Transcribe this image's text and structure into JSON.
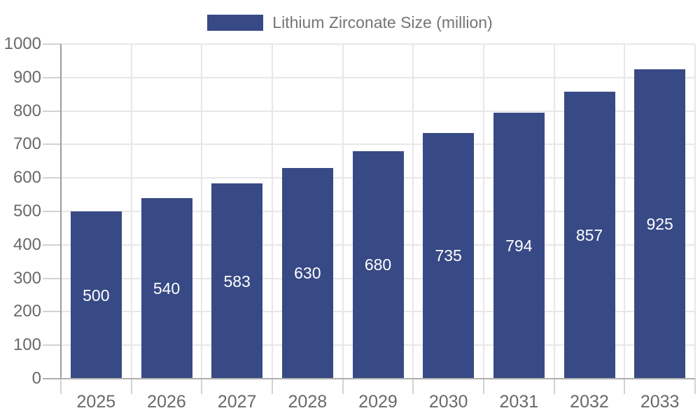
{
  "chart_data": {
    "type": "bar",
    "legend": "Lithium Zirconate Size (million)",
    "categories": [
      "2025",
      "2026",
      "2027",
      "2028",
      "2029",
      "2030",
      "2031",
      "2032",
      "2033"
    ],
    "values": [
      500,
      540,
      583,
      630,
      680,
      735,
      794,
      857,
      925
    ],
    "title": "",
    "xlabel": "",
    "ylabel": "",
    "ylim": [
      0,
      1000
    ],
    "ytick_step": 100,
    "grid": true,
    "legend_position": "top-center",
    "colors": {
      "bar": "#384a85",
      "bar_label": "#ffffff",
      "axis_tick_label": "#696969",
      "legend_text": "#757575",
      "gridline": "#e7e7e7",
      "tick": "#d2d2d2",
      "y_axis_line": "#9c9c9c",
      "x_axis_line": "#aeaeae",
      "background": "#ffffff"
    }
  }
}
